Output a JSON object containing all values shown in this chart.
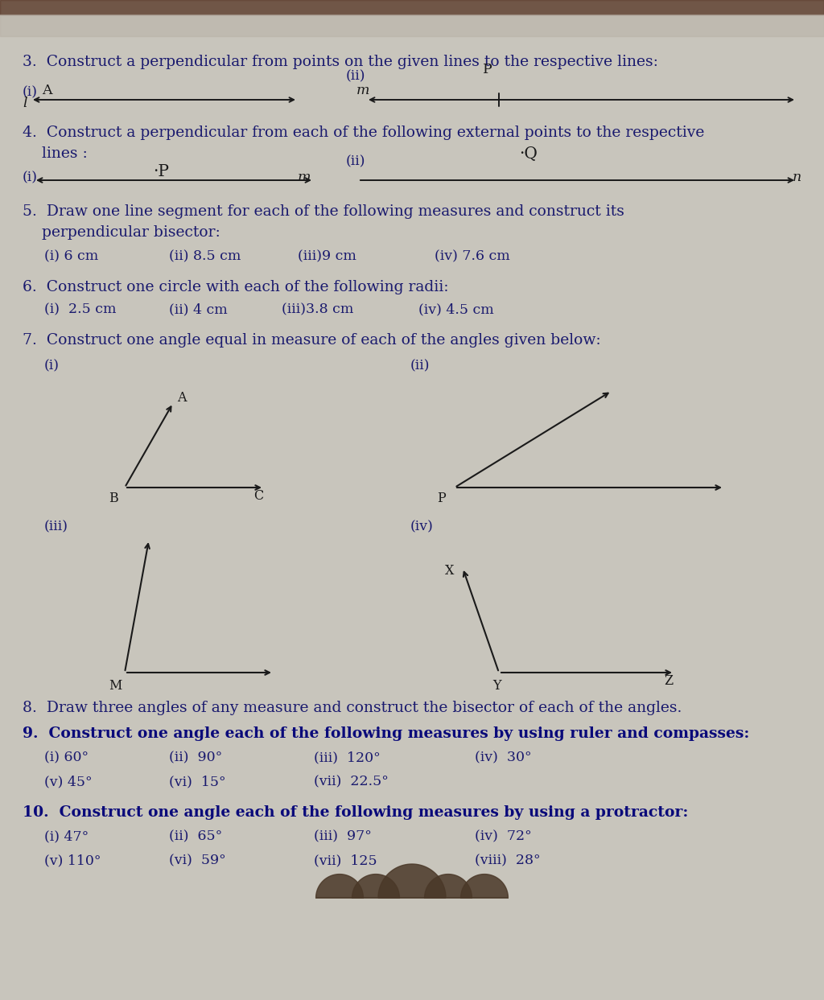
{
  "bg_color": "#c8c5bc",
  "text_color": "#1a1a6e",
  "line_color": "#1a1a1a",
  "bold_blue": "#0a0a7a",
  "q3_text": "3.  Construct a perpendicular from points on the given lines to the respective lines:",
  "q4_text_a": "4.  Construct a perpendicular from each of the following external points to the respective",
  "q4_text_b": "    lines :",
  "q5_text_a": "5.  Draw one line segment for each of the following measures and construct its",
  "q5_text_b": "    perpendicular bisector:",
  "q5_items_i": "(i) 6 cm",
  "q5_items_ii": "(ii) 8.5 cm",
  "q5_items_iii": "(iii)9 cm",
  "q5_items_iv": "(iv) 7.6 cm",
  "q6_text": "6.  Construct one circle with each of the following radii:",
  "q6_items_i": "(i)  2.5 cm",
  "q6_items_ii": "(ii) 4 cm",
  "q6_items_iii": "(iii)3.8 cm",
  "q6_items_iv": "(iv) 4.5 cm",
  "q7_text": "7.  Construct one angle equal in measure of each of the angles given below:",
  "q8_text": "8.  Draw three angles of any measure and construct the bisector of each of the angles.",
  "q9_text": "9.  Construct one angle each of the following measures by using ruler and compasses:",
  "q9_i": "(i) 60°",
  "q9_ii": "(ii)  90°",
  "q9_iii": "(iii)  120°",
  "q9_iv": "(iv)  30°",
  "q9_v": "(v) 45°",
  "q9_vi": "(vi)  15°",
  "q9_vii": "(vii)  22.5°",
  "q10_text": "10.  Construct one angle each of the following measures by using a protractor:",
  "q10_i": "(i) 47°",
  "q10_ii": "(ii)  65°",
  "q10_iii": "(iii)  97°",
  "q10_iv": "(iv)  72°",
  "q10_v": "(v) 110°",
  "q10_vi": "(vi)  59°",
  "q10_vii": "(vii)  125",
  "q10_viii": "(viii)  28°"
}
